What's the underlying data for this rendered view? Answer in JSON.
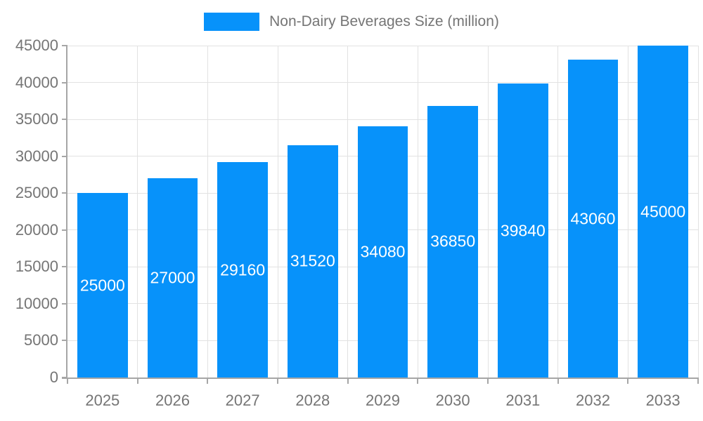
{
  "chart_data": {
    "type": "bar",
    "title": "",
    "legend_position": "top",
    "legend_label": "Non-Dairy Beverages Size (million)",
    "categories": [
      "2025",
      "2026",
      "2027",
      "2028",
      "2029",
      "2030",
      "2031",
      "2032",
      "2033"
    ],
    "series": [
      {
        "name": "Non-Dairy Beverages Size (million)",
        "values": [
          25000,
          27000,
          29160,
          31520,
          34080,
          36850,
          39840,
          43060,
          45000
        ]
      }
    ],
    "data_labels": [
      "25000",
      "27000",
      "29160",
      "31520",
      "34080",
      "36850",
      "39840",
      "43060",
      "45000"
    ],
    "ylim": [
      0,
      45000
    ],
    "yticks": [
      0,
      5000,
      10000,
      15000,
      20000,
      25000,
      30000,
      35000,
      40000,
      45000
    ],
    "grid": true,
    "xlabel": "",
    "ylabel": "",
    "colors": {
      "bar": "#0792fa",
      "bar_value_text": "#ffffff",
      "axis_text": "#757575",
      "gridline": "#e2e2e2",
      "axis_line": "#a6a6a6",
      "background": "#ffffff"
    }
  }
}
